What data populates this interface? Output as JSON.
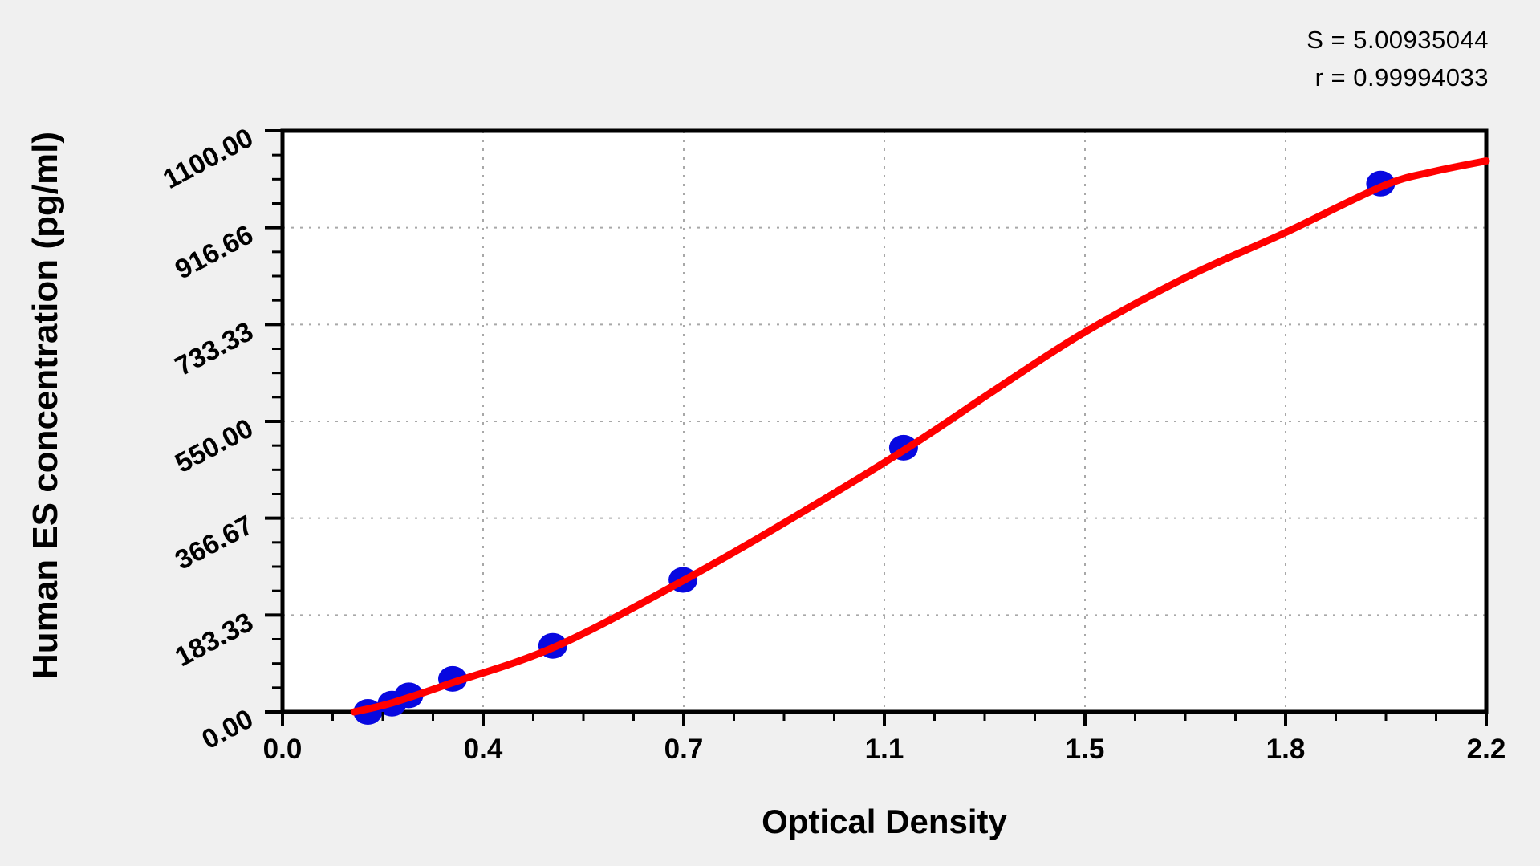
{
  "chart_data": {
    "type": "scatter",
    "title": "",
    "xlabel": "Optical Density",
    "ylabel": "Human ES concentration (pg/ml)",
    "xlim": [
      0,
      2.2
    ],
    "ylim": [
      0,
      1100
    ],
    "x_major_divisions": 6,
    "y_major_divisions": 6,
    "x_minor_per_major": 4,
    "y_minor_per_major": 4,
    "xtick_labels": [
      "0.0",
      "0.4",
      "0.7",
      "1.1",
      "1.5",
      "1.8",
      "2.2"
    ],
    "ytick_labels": [
      "0.00",
      "183.33",
      "366.67",
      "550.00",
      "733.33",
      "916.66",
      "1100.00"
    ],
    "grid": "major-dashed",
    "legend": "none",
    "annotations": {
      "s": "S = 5.00935044",
      "r": "r = 0.99994033"
    },
    "points": [
      {
        "od": 0.156,
        "conc": 0
      },
      {
        "od": 0.2,
        "conc": 15.625
      },
      {
        "od": 0.231,
        "conc": 31.25
      },
      {
        "od": 0.311,
        "conc": 62.5
      },
      {
        "od": 0.494,
        "conc": 125
      },
      {
        "od": 0.732,
        "conc": 250
      },
      {
        "od": 1.135,
        "conc": 500
      },
      {
        "od": 2.007,
        "conc": 1000
      }
    ],
    "fit_curve_samples": [
      [
        0.131,
        0
      ],
      [
        0.2,
        17
      ],
      [
        0.31,
        55
      ],
      [
        0.5,
        124
      ],
      [
        0.735,
        250
      ],
      [
        0.94,
        372
      ],
      [
        1.14,
        498
      ],
      [
        1.3,
        608
      ],
      [
        1.46,
        715
      ],
      [
        1.65,
        822
      ],
      [
        1.83,
        906
      ],
      [
        2.01,
        995
      ],
      [
        2.1,
        1022
      ],
      [
        2.2,
        1043
      ]
    ],
    "colors": {
      "curve": "#ff0000",
      "marker": "#0808e0",
      "grid": "#a8a8a8",
      "axis": "#000000",
      "plot_bg": "#ffffff",
      "page_bg": "#f0f0f0",
      "text": "#000000"
    }
  }
}
